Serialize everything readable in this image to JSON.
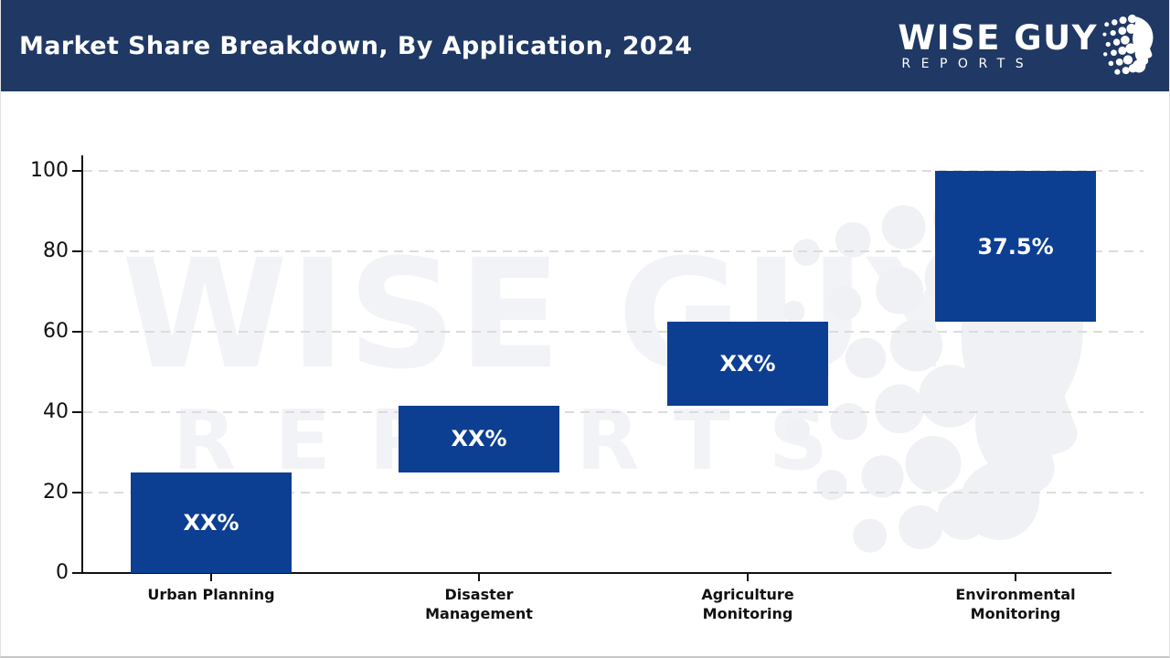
{
  "header": {
    "title": "Market Share Breakdown, By Application, 2024",
    "logo": {
      "line1": "WISE GUY",
      "line2": "REPORTS"
    }
  },
  "watermark": {
    "line1": "WISE GUY",
    "line2": "REPORTS"
  },
  "colors": {
    "header_bg": "#1F3864",
    "bar": "#0C3E92",
    "grid": "#DCDCDC",
    "axis": "#111111",
    "bar_label": "#FFFFFF",
    "watermark": "#F2F3F6"
  },
  "chart_data": {
    "type": "bar",
    "subtype": "waterfall",
    "title": "Market Share Breakdown, By Application, 2024",
    "categories": [
      "Urban Planning",
      "Disaster\nManagement",
      "Agriculture\nMonitoring",
      "Environmental\nMonitoring"
    ],
    "series": [
      {
        "name": "Market Share",
        "segments": [
          {
            "category": "Urban Planning",
            "start": 0,
            "end": 25,
            "label": "XX%"
          },
          {
            "category": "Disaster Management",
            "start": 25,
            "end": 41.7,
            "label": "XX%"
          },
          {
            "category": "Agriculture Monitoring",
            "start": 41.7,
            "end": 62.5,
            "label": "XX%"
          },
          {
            "category": "Environmental Monitoring",
            "start": 62.5,
            "end": 100,
            "label": "37.5%"
          }
        ]
      }
    ],
    "yticks": [
      0,
      20,
      40,
      60,
      80,
      100
    ],
    "ylim": [
      0,
      104
    ],
    "xlabel": "",
    "ylabel": "",
    "grid": "horizontal-dashed",
    "legend": "none"
  }
}
